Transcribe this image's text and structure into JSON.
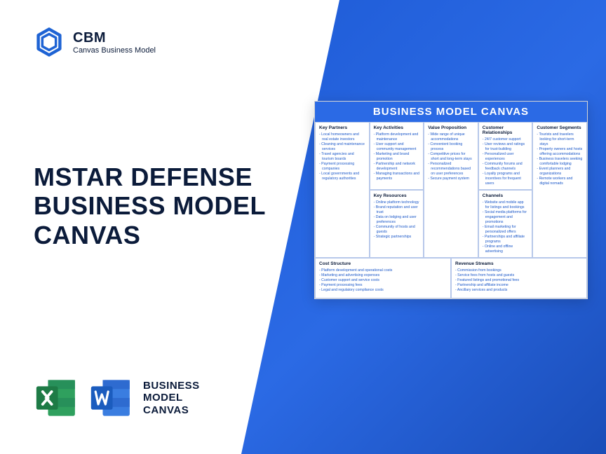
{
  "logo": {
    "brand": "CBM",
    "tagline": "Canvas Business Model"
  },
  "title_lines": [
    "MSTAR DEFENSE",
    "BUSINESS MODEL",
    "CANVAS"
  ],
  "app_label_lines": [
    "BUSINESS",
    "MODEL",
    "CANVAS"
  ],
  "colors": {
    "blue_grad_a": "#1e5bd6",
    "blue_grad_b": "#2b6ae5",
    "hex_blue": "#1e63d4",
    "excel_green": "#1e7b46",
    "excel_green_light": "#2fa05e",
    "word_blue": "#1b5cbe",
    "word_blue_light": "#3a7de0"
  },
  "canvas": {
    "header": "BUSINESS MODEL CANVAS",
    "cells": {
      "key_partners": {
        "title": "Key Partners",
        "items": [
          "Local homeowners and real estate investors",
          "Cleaning and maintenance services",
          "Travel agencies and tourism boards",
          "Payment processing companies",
          "Local governments and regulatory authorities"
        ]
      },
      "key_activities": {
        "title": "Key Activities",
        "items": [
          "Platform development and maintenance",
          "User support and community management",
          "Marketing and brand promotion",
          "Partnership and network development",
          "Managing transactions and payments"
        ]
      },
      "value_proposition": {
        "title": "Value Proposition",
        "items": [
          "Wide range of unique accommodations",
          "Convenient booking process",
          "Competitive prices for short and long-term stays",
          "Personalized recommendations based on user preferences",
          "Secure payment system"
        ]
      },
      "customer_relationships": {
        "title": "Customer Relationships",
        "items": [
          "24/7 customer support",
          "User reviews and ratings for trust-building",
          "Personalized user experiences",
          "Community forums and feedback channels",
          "Loyalty programs and incentives for frequent users"
        ]
      },
      "customer_segments": {
        "title": "Customer Segments",
        "items": [
          "Tourists and travelers looking for short-term stays",
          "Property owners and hosts offering accommodations",
          "Business travelers seeking comfortable lodging",
          "Event planners and organizations",
          "Remote workers and digital nomads"
        ]
      },
      "key_resources": {
        "title": "Key Resources",
        "items": [
          "Online platform technology",
          "Brand reputation and user trust",
          "Data on lodging and user preferences",
          "Community of hosts and guests",
          "Strategic partnerships"
        ]
      },
      "channels": {
        "title": "Channels",
        "items": [
          "Website and mobile app for listings and bookings",
          "Social media platforms for engagement and promotions",
          "Email marketing for personalized offers",
          "Partnerships and affiliate programs",
          "Online and offline advertising"
        ]
      },
      "cost_structure": {
        "title": "Cost Structure",
        "items": [
          "Platform development and operational costs",
          "Marketing and advertising expenses",
          "Customer support and service costs",
          "Payment processing fees",
          "Legal and regulatory compliance costs"
        ]
      },
      "revenue_streams": {
        "title": "Revenue Streams",
        "items": [
          "Commission from bookings",
          "Service fees from hosts and guests",
          "Featured listings and promotional fees",
          "Partnership and affiliate income",
          "Ancillary services and products"
        ]
      }
    }
  }
}
